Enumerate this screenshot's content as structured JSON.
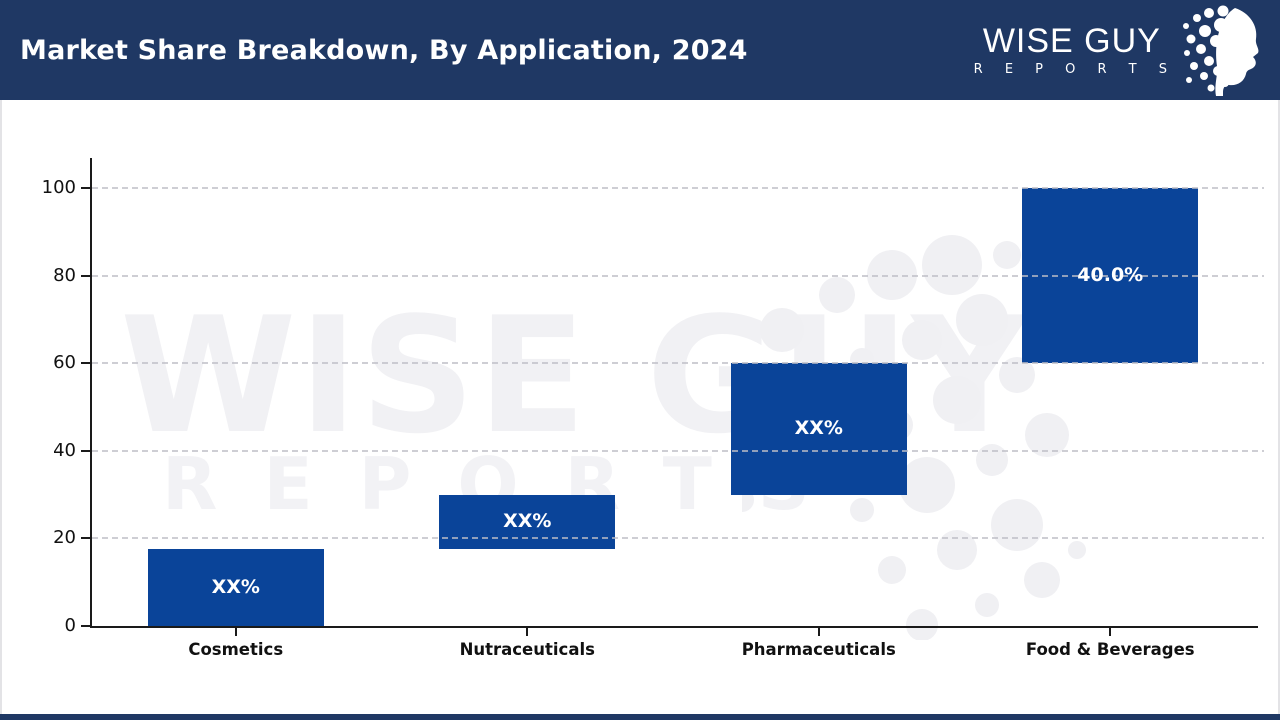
{
  "header": {
    "title": "Market Share Breakdown, By Application, 2024",
    "logo": {
      "line1": "WISE GUY",
      "line2": "REPORTS"
    }
  },
  "watermark": {
    "line1": "WISE GUY",
    "line2": "REPORTS"
  },
  "chart_data": {
    "type": "bar",
    "subtype": "waterfall",
    "title": "Market Share Breakdown, By Application, 2024",
    "xlabel": "",
    "ylabel": "",
    "ylim": [
      0,
      100
    ],
    "yticks": [
      "0",
      "20",
      "40",
      "60",
      "80",
      "100"
    ],
    "grid": "horizontal-dashed",
    "legend": "none",
    "bar_color": "#0a4499",
    "bar_label_color": "#ffffff",
    "categories": [
      "Cosmetics",
      "Nutraceuticals",
      "Pharmaceuticals",
      "Food & Beverages"
    ],
    "segments": [
      {
        "category": "Cosmetics",
        "start": 0,
        "end": 17.5,
        "value": 17.5,
        "label": "XX%"
      },
      {
        "category": "Nutraceuticals",
        "start": 17.5,
        "end": 30,
        "value": 12.5,
        "label": "XX%"
      },
      {
        "category": "Pharmaceuticals",
        "start": 30,
        "end": 60,
        "value": 30,
        "label": "XX%"
      },
      {
        "category": "Food & Beverages",
        "start": 60,
        "end": 100,
        "value": 40,
        "label": "40.0%"
      }
    ]
  }
}
